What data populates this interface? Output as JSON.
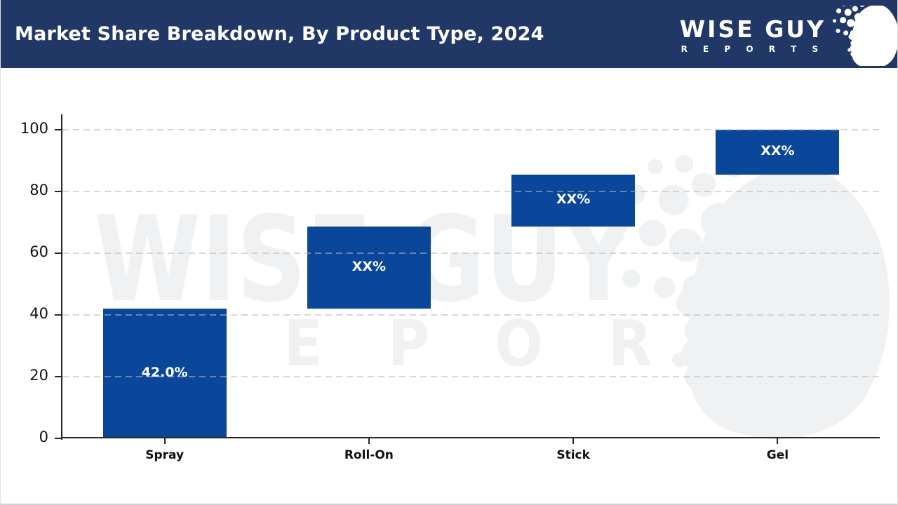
{
  "header": {
    "title": "Market Share Breakdown, By Product Type, 2024",
    "brand": {
      "line1": "WISE GUY",
      "line2": "R E P O R T S"
    }
  },
  "watermark": {
    "line1": "WISE GUY",
    "line2": "R E P O R T S"
  },
  "chart_data": {
    "type": "waterfall",
    "title": "Market Share Breakdown, By Product Type, 2024",
    "categories": [
      "Spray",
      "Roll-On",
      "Stick",
      "Gel"
    ],
    "segments": [
      {
        "category": "Spray",
        "start": 0,
        "end": 42,
        "label": "42.0%"
      },
      {
        "category": "Roll-On",
        "start": 42,
        "end": 68.6,
        "label": "XX%"
      },
      {
        "category": "Stick",
        "start": 68.6,
        "end": 85.4,
        "label": "XX%"
      },
      {
        "category": "Gel",
        "start": 85.4,
        "end": 100,
        "label": "XX%"
      }
    ],
    "yticks": [
      0,
      20,
      40,
      60,
      80,
      100
    ],
    "ylim": [
      0,
      105
    ],
    "grid": "horizontal-dashed",
    "legend": "none",
    "xlabel": "",
    "ylabel": "",
    "bar_color": "#0a4699",
    "bar_label_color": "#ffffff"
  },
  "colors": {
    "header_bg": "#213867",
    "bar": "#0a4699",
    "axis": "#262626",
    "grid": "#c9c9c9",
    "watermark": "#f0f1f3"
  }
}
